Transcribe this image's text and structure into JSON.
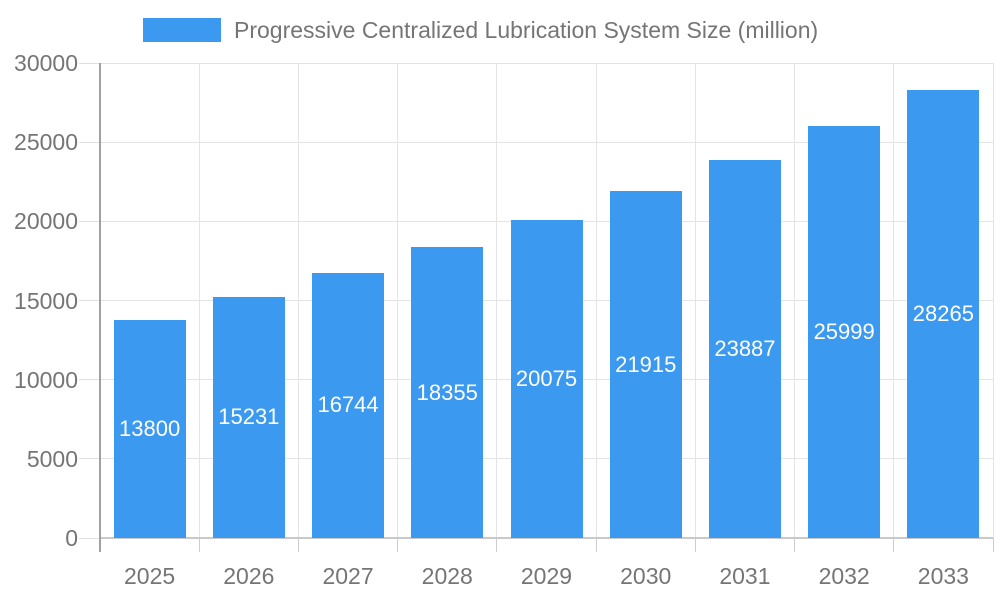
{
  "legend": {
    "label": "Progressive Centralized Lubrication System Size (million)",
    "swatch_color": "#3b99f0"
  },
  "chart_data": {
    "type": "bar",
    "title": "Progressive Centralized Lubrication System Size (million)",
    "categories": [
      "2025",
      "2026",
      "2027",
      "2028",
      "2029",
      "2030",
      "2031",
      "2032",
      "2033"
    ],
    "series": [
      {
        "name": "Progressive Centralized Lubrication System Size (million)",
        "values": [
          13800,
          15231,
          16744,
          18355,
          20075,
          21915,
          23887,
          25999,
          28265
        ]
      }
    ],
    "value_labels": [
      "13800",
      "15231",
      "16744",
      "18355",
      "20075",
      "21915",
      "23887",
      "25999",
      "28265"
    ],
    "xlabel": "",
    "ylabel": "",
    "ylim": [
      0,
      30000
    ],
    "yticks": [
      0,
      5000,
      10000,
      15000,
      20000,
      25000,
      30000
    ],
    "ytick_labels": [
      "0",
      "5000",
      "10000",
      "15000",
      "20000",
      "25000",
      "30000"
    ],
    "grid": true,
    "legend_position": "top",
    "bar_color": "#3b99f0",
    "value_label_color": "#ffffff",
    "axis_text_color": "#757575",
    "gridline_color": "#e4e4e4"
  }
}
